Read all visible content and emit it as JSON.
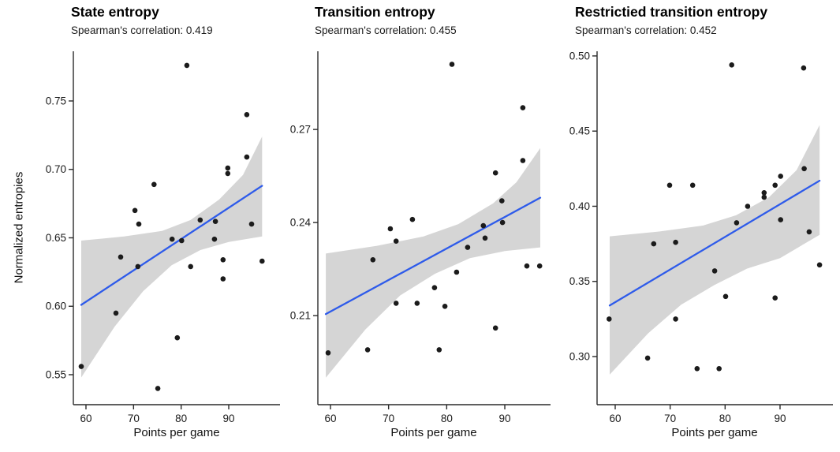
{
  "figure": {
    "background": "#ffffff",
    "colors": {
      "point": "#1b1b1b",
      "regression_line": "#2e5bea",
      "confidence_band": "#d5d5d5",
      "axis": "#2a2a2a",
      "tick_text": "#1a1a1a"
    }
  },
  "chart_data": [
    {
      "type": "scatter",
      "title": "State entropy",
      "subtitle": "Spearman's correlation: 0.419",
      "spearman_correlation": 0.419,
      "xlabel": "Points per game",
      "ylabel": "Normalized entropies",
      "grid": false,
      "x_ticks": [
        60,
        70,
        80,
        90
      ],
      "y_tick_labels": [
        "0.55",
        "0.60",
        "0.65",
        "0.70",
        "0.75"
      ],
      "xlim": [
        57.35,
        100.77
      ],
      "ylim": [
        0.5281,
        0.7863
      ],
      "points": [
        [
          59.0,
          0.556
        ],
        [
          66.3,
          0.595
        ],
        [
          67.3,
          0.636
        ],
        [
          70.3,
          0.67
        ],
        [
          70.9,
          0.629
        ],
        [
          71.1,
          0.66
        ],
        [
          74.3,
          0.689
        ],
        [
          75.1,
          0.54
        ],
        [
          78.1,
          0.649
        ],
        [
          79.2,
          0.577
        ],
        [
          80.1,
          0.648
        ],
        [
          81.2,
          0.776
        ],
        [
          82.0,
          0.629
        ],
        [
          84.0,
          0.663
        ],
        [
          87.0,
          0.649
        ],
        [
          87.2,
          0.662
        ],
        [
          88.8,
          0.634
        ],
        [
          88.8,
          0.62
        ],
        [
          89.8,
          0.701
        ],
        [
          89.8,
          0.697
        ],
        [
          93.8,
          0.74
        ],
        [
          93.8,
          0.709
        ],
        [
          94.8,
          0.66
        ],
        [
          97.0,
          0.633
        ]
      ],
      "regression_line": {
        "x1": 59.0,
        "y1": 0.601,
        "x2": 97.0,
        "y2": 0.688
      },
      "ci_band_upper": [
        [
          59.0,
          0.648
        ],
        [
          68.0,
          0.651
        ],
        [
          76.0,
          0.655
        ],
        [
          82.0,
          0.663
        ],
        [
          88.0,
          0.678
        ],
        [
          93.0,
          0.696
        ],
        [
          97.0,
          0.724
        ]
      ],
      "ci_band_lower": [
        [
          59.0,
          0.548
        ],
        [
          66.0,
          0.585
        ],
        [
          72.0,
          0.611
        ],
        [
          78.0,
          0.63
        ],
        [
          84.0,
          0.641
        ],
        [
          90.0,
          0.647
        ],
        [
          97.0,
          0.651
        ]
      ]
    },
    {
      "type": "scatter",
      "title": "Transition entropy",
      "subtitle": "Spearman's correlation: 0.455",
      "spearman_correlation": 0.455,
      "xlabel": "Points per game",
      "ylabel": "",
      "grid": false,
      "x_ticks": [
        60,
        70,
        80,
        90
      ],
      "y_tick_labels": [
        "0.21",
        "0.24",
        "0.27"
      ],
      "xlim": [
        57.83,
        97.87
      ],
      "ylim": [
        0.1813,
        0.2952
      ],
      "points": [
        [
          59.6,
          0.198
        ],
        [
          66.4,
          0.199
        ],
        [
          67.3,
          0.228
        ],
        [
          70.3,
          0.238
        ],
        [
          71.3,
          0.234
        ],
        [
          71.3,
          0.214
        ],
        [
          74.1,
          0.241
        ],
        [
          74.9,
          0.214
        ],
        [
          77.9,
          0.219
        ],
        [
          78.7,
          0.199
        ],
        [
          79.7,
          0.213
        ],
        [
          80.9,
          0.291
        ],
        [
          81.7,
          0.224
        ],
        [
          83.6,
          0.232
        ],
        [
          86.3,
          0.239
        ],
        [
          86.6,
          0.235
        ],
        [
          88.4,
          0.256
        ],
        [
          88.4,
          0.206
        ],
        [
          89.5,
          0.247
        ],
        [
          89.6,
          0.24
        ],
        [
          93.1,
          0.277
        ],
        [
          93.1,
          0.26
        ],
        [
          93.8,
          0.226
        ],
        [
          96.0,
          0.226
        ]
      ],
      "regression_line": {
        "x1": 59.2,
        "y1": 0.2105,
        "x2": 96.1,
        "y2": 0.248
      },
      "ci_band_upper": [
        [
          59.2,
          0.23
        ],
        [
          68.0,
          0.2325
        ],
        [
          76.0,
          0.2355
        ],
        [
          82.0,
          0.2395
        ],
        [
          88.0,
          0.2462
        ],
        [
          92.0,
          0.253
        ],
        [
          96.1,
          0.264
        ]
      ],
      "ci_band_lower": [
        [
          59.2,
          0.19
        ],
        [
          66.0,
          0.2055
        ],
        [
          72.0,
          0.2165
        ],
        [
          78.0,
          0.2235
        ],
        [
          84.0,
          0.2285
        ],
        [
          90.0,
          0.2308
        ],
        [
          96.1,
          0.232
        ]
      ]
    },
    {
      "type": "scatter",
      "title": "Restrictied transition entropy",
      "subtitle": "Spearman's correlation: 0.452",
      "spearman_correlation": 0.452,
      "xlabel": "Points per game",
      "ylabel": "",
      "grid": false,
      "x_ticks": [
        60,
        70,
        80,
        90
      ],
      "y_tick_labels": [
        "0.30",
        "0.35",
        "0.40",
        "0.45",
        "0.50"
      ],
      "xlim": [
        56.7,
        99.62
      ],
      "ylim": [
        0.268,
        0.5031
      ],
      "points": [
        [
          58.9,
          0.325
        ],
        [
          65.9,
          0.299
        ],
        [
          67.0,
          0.375
        ],
        [
          69.9,
          0.414
        ],
        [
          71.0,
          0.376
        ],
        [
          71.0,
          0.325
        ],
        [
          74.1,
          0.414
        ],
        [
          74.9,
          0.292
        ],
        [
          78.1,
          0.357
        ],
        [
          78.9,
          0.292
        ],
        [
          80.1,
          0.34
        ],
        [
          81.2,
          0.494
        ],
        [
          82.1,
          0.389
        ],
        [
          84.1,
          0.4
        ],
        [
          87.1,
          0.409
        ],
        [
          87.1,
          0.406
        ],
        [
          89.1,
          0.414
        ],
        [
          89.1,
          0.339
        ],
        [
          90.1,
          0.42
        ],
        [
          90.1,
          0.391
        ],
        [
          94.3,
          0.492
        ],
        [
          94.4,
          0.425
        ],
        [
          95.3,
          0.383
        ],
        [
          97.2,
          0.361
        ]
      ],
      "regression_line": {
        "x1": 59.0,
        "y1": 0.334,
        "x2": 97.2,
        "y2": 0.417
      },
      "ci_band_upper": [
        [
          59.0,
          0.38
        ],
        [
          68.0,
          0.3832
        ],
        [
          76.0,
          0.3872
        ],
        [
          82.0,
          0.394
        ],
        [
          88.0,
          0.406
        ],
        [
          93.0,
          0.424
        ],
        [
          97.2,
          0.454
        ]
      ],
      "ci_band_lower": [
        [
          59.0,
          0.288
        ],
        [
          66.0,
          0.3155
        ],
        [
          72.0,
          0.3345
        ],
        [
          78.0,
          0.3475
        ],
        [
          84.0,
          0.3585
        ],
        [
          90.0,
          0.3655
        ],
        [
          97.2,
          0.381
        ]
      ]
    }
  ]
}
